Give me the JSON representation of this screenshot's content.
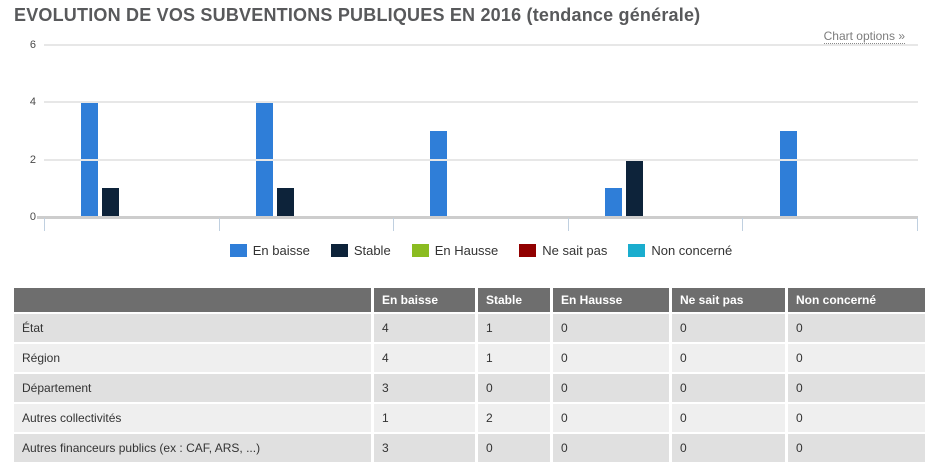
{
  "title": "EVOLUTION DE VOS SUBVENTIONS PUBLIQUES EN 2016 (tendance générale)",
  "chart_options": {
    "label": "Chart options »"
  },
  "chart_data": {
    "type": "bar",
    "title": "EVOLUTION DE VOS SUBVENTIONS PUBLIQUES EN 2016 (tendance générale)",
    "categories": [
      "État",
      "Région",
      "Département",
      "Autres collectivités",
      "Autres financeurs publics (ex : CAF, ARS, ...)"
    ],
    "series": [
      {
        "name": "En baisse",
        "color": "#2f7ed8",
        "values": [
          4,
          4,
          3,
          1,
          3
        ]
      },
      {
        "name": "Stable",
        "color": "#0d233a",
        "values": [
          1,
          1,
          0,
          2,
          0
        ]
      },
      {
        "name": "En Hausse",
        "color": "#8bbc21",
        "values": [
          0,
          0,
          0,
          0,
          0
        ]
      },
      {
        "name": "Ne sait pas",
        "color": "#910000",
        "values": [
          0,
          0,
          0,
          0,
          0
        ]
      },
      {
        "name": "Non concerné",
        "color": "#1aadce",
        "values": [
          0,
          0,
          0,
          0,
          0
        ]
      }
    ],
    "xlabel": "",
    "ylabel": "",
    "ylim": [
      0,
      6
    ],
    "yticks": [
      0,
      2,
      4,
      6
    ],
    "grid": true,
    "legend_position": "bottom"
  },
  "table": {
    "header": [
      "",
      "En baisse",
      "Stable",
      "En Hausse",
      "Ne sait pas",
      "Non concerné"
    ],
    "rows": [
      {
        "label": "État",
        "values": [
          4,
          1,
          0,
          0,
          0
        ]
      },
      {
        "label": "Région",
        "values": [
          4,
          1,
          0,
          0,
          0
        ]
      },
      {
        "label": "Département",
        "values": [
          3,
          0,
          0,
          0,
          0
        ]
      },
      {
        "label": "Autres collectivités",
        "values": [
          1,
          2,
          0,
          0,
          0
        ]
      },
      {
        "label": "Autres financeurs publics (ex : CAF, ARS, ...)",
        "values": [
          3,
          0,
          0,
          0,
          0
        ]
      }
    ]
  }
}
